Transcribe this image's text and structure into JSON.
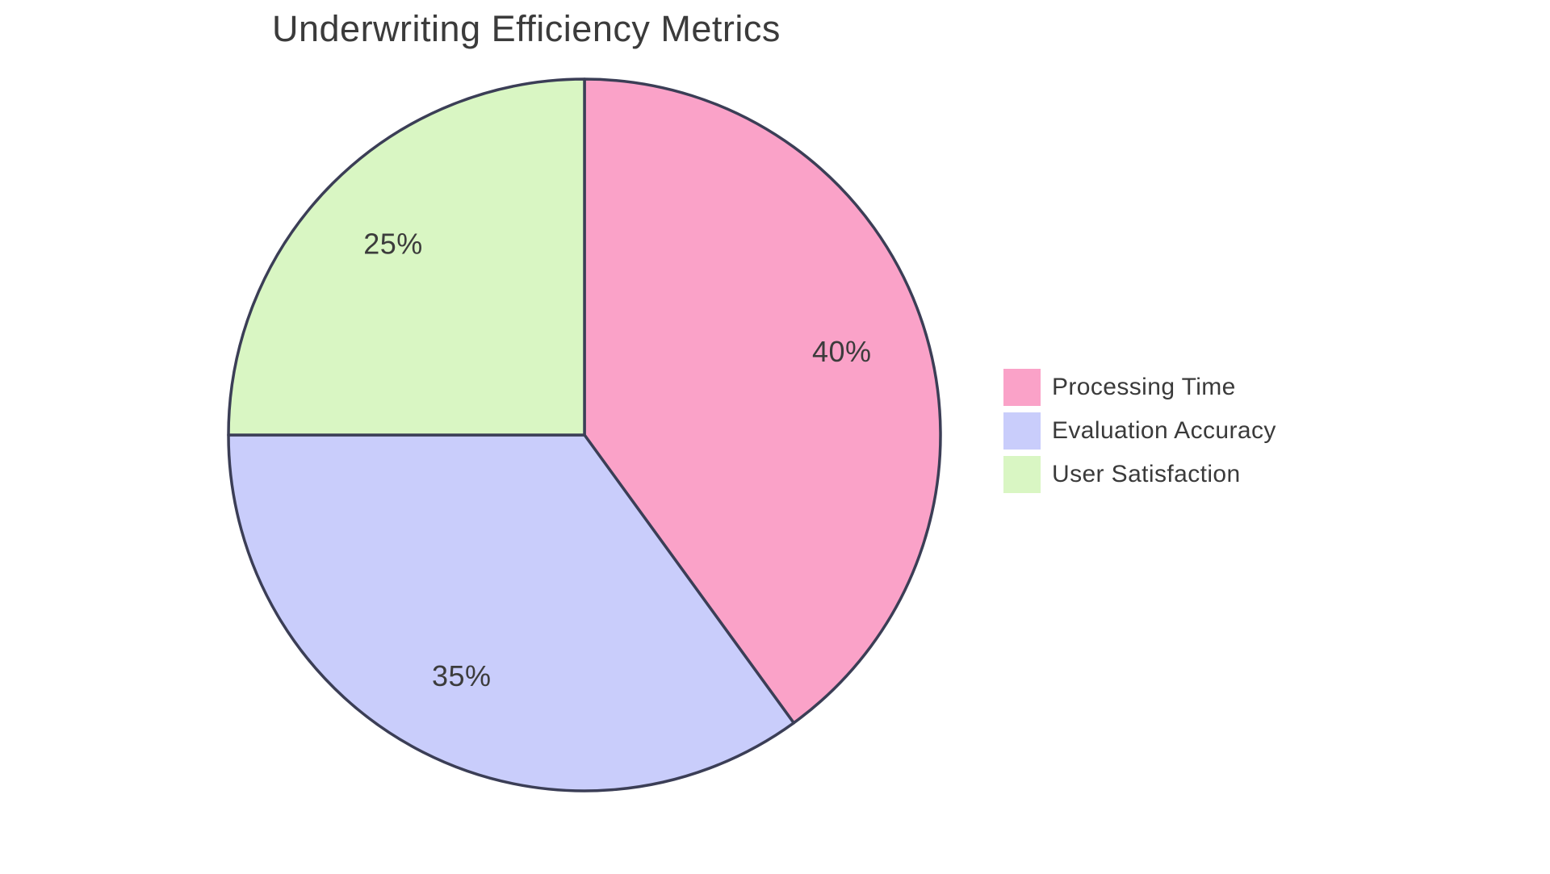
{
  "chart_data": {
    "type": "pie",
    "title": "Underwriting Efficiency Metrics",
    "labels": [
      "Processing Time",
      "Evaluation Accuracy",
      "User Satisfaction"
    ],
    "values": [
      40,
      35,
      25
    ],
    "value_labels": [
      "40%",
      "35%",
      "25%"
    ],
    "colors": [
      "#FAA2C8",
      "#C9CDFB",
      "#D9F6C3"
    ],
    "slice_border_color": "#3B3E56",
    "percent_label_color": "#3C3C3C",
    "title_color": "#3B3B3B",
    "background_color": "#FFFFFF",
    "legend_position": "right",
    "start_angle_deg": 0,
    "direction": "clockwise"
  }
}
